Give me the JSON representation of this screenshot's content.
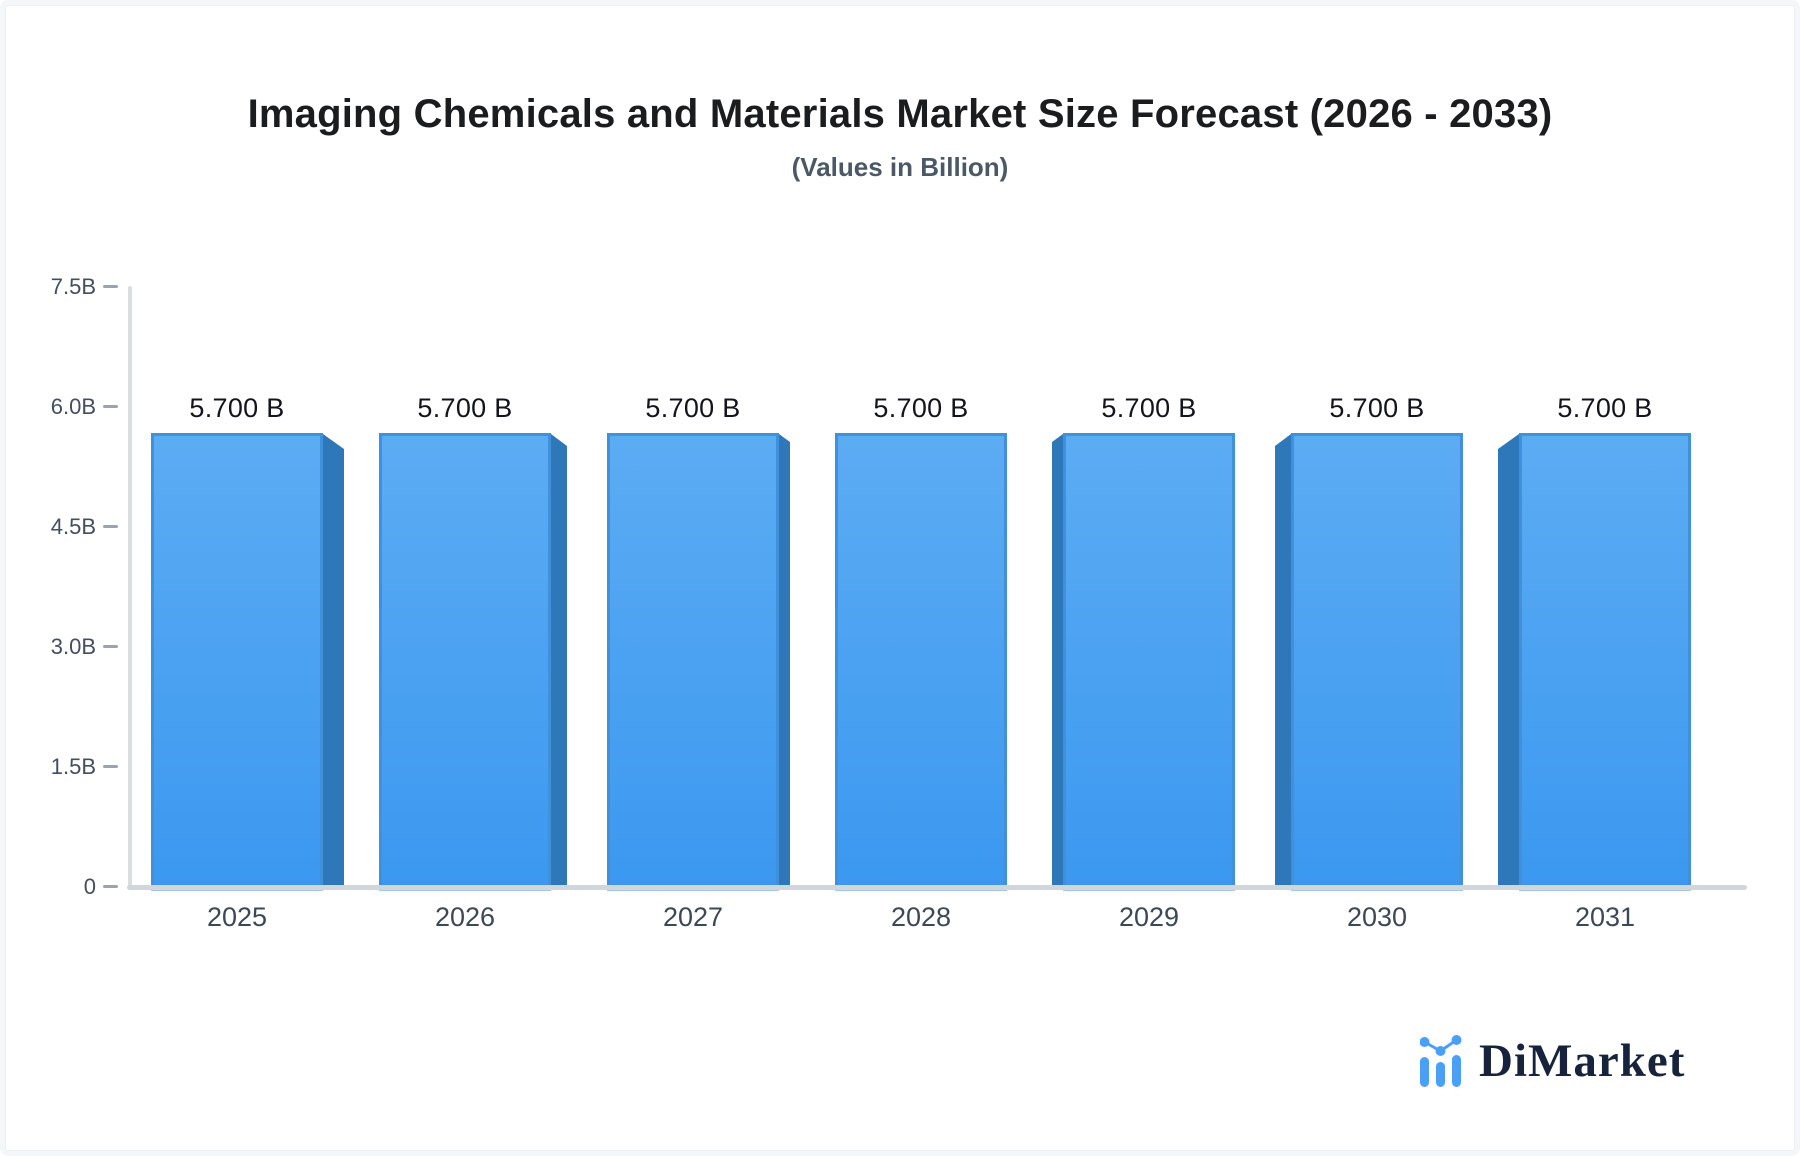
{
  "header": {
    "title": "Imaging Chemicals and Materials Market Size Forecast (2026 - 2033)",
    "subtitle": "(Values in Billion)"
  },
  "chart_data": {
    "type": "bar",
    "title": "Imaging Chemicals and Materials Market Size Forecast (2026 - 2033)",
    "subtitle": "(Values in Billion)",
    "categories": [
      "2025",
      "2026",
      "2027",
      "2028",
      "2029",
      "2030",
      "2031"
    ],
    "values": [
      5.7,
      5.7,
      5.7,
      5.7,
      5.7,
      5.7,
      5.7
    ],
    "value_labels": [
      "5.700 B",
      "5.700 B",
      "5.700 B",
      "5.700 B",
      "5.700 B",
      "5.700 B",
      "5.700 B"
    ],
    "xlabel": "",
    "ylabel": "",
    "ylim": [
      0,
      7.5
    ],
    "yticks": [
      {
        "label": "7.5B",
        "value": 7.5
      },
      {
        "label": "6.0B",
        "value": 6.0
      },
      {
        "label": "4.5B",
        "value": 4.5
      },
      {
        "label": "3.0B",
        "value": 3.0
      },
      {
        "label": "1.5B",
        "value": 1.5
      },
      {
        "label": "0",
        "value": 0
      }
    ],
    "grid": false,
    "legend": false,
    "style": "3d-perspective-bars",
    "colors": {
      "bar_top": "#5cacf3",
      "bar_bottom": "#3b98f0",
      "bar_stroke": "#4090dc",
      "bar_side": "#2e77b9",
      "axis_line": "#d2d6da",
      "tick_text": "#434e60",
      "category_text": "#3d4857",
      "value_text": "#12151b"
    }
  },
  "footer": {
    "brand": "DiMarket",
    "logo_icon": "bar-chart-with-dots-icon",
    "brand_color": "#17233d",
    "logo_accent": "#4aa0f7"
  }
}
